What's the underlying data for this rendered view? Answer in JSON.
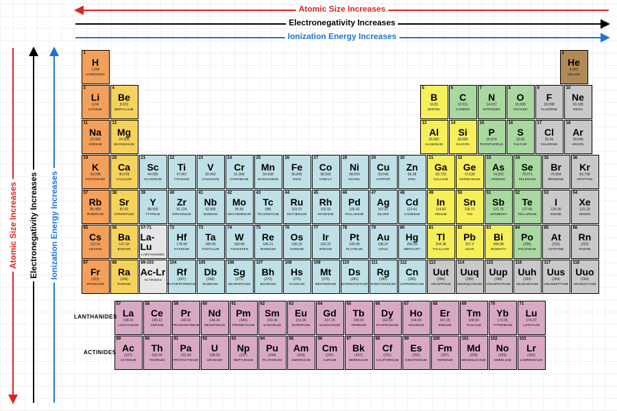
{
  "trends": {
    "top": [
      {
        "label": "Atomic Size Increases",
        "color": "#d9241f",
        "dir": "left"
      },
      {
        "label": "Electronegativity Increases",
        "color": "#000000",
        "dir": "right"
      },
      {
        "label": "Ionization Energy Increases",
        "color": "#1e73d9",
        "dir": "right"
      }
    ],
    "left": [
      {
        "label": "Atomic Size Increases",
        "color": "#d9241f",
        "dir": "down",
        "x": 0
      },
      {
        "label": "Electronegativity Increases",
        "color": "#000000",
        "dir": "up",
        "x": 30
      },
      {
        "label": "Ionization Energy Increases",
        "color": "#1e73d9",
        "dir": "up",
        "x": 60
      }
    ]
  },
  "categoryColors": {
    "alkali": "#f4a05a",
    "alkaline": "#f5d25a",
    "transition": "#bfe0e6",
    "postTransition": "#f5ef5a",
    "metalloid": "#a9d8a0",
    "nonmetal": "#c9c9c9",
    "halogen": "#c9c9c9",
    "noble": "#b08a55",
    "lanth": "#d9a9c4",
    "act": "#d9a9c4",
    "placeholder": "#e6e6e6",
    "unknown": "#c9c9c9"
  },
  "seriesLabels": {
    "lanth": "LANTHANIDES",
    "act": "ACTINIDES"
  },
  "rows": [
    [
      {
        "n": 1,
        "s": "H",
        "m": "1.008",
        "nm": "HYDROGEN",
        "c": "alkali"
      },
      null,
      null,
      null,
      null,
      null,
      null,
      null,
      null,
      null,
      null,
      null,
      null,
      null,
      null,
      null,
      null,
      {
        "n": 2,
        "s": "He",
        "m": "4.003",
        "nm": "HELIUM",
        "c": "noble"
      }
    ],
    [
      {
        "n": 3,
        "s": "Li",
        "m": "6.94",
        "nm": "LITHIUM",
        "c": "alkali"
      },
      {
        "n": 4,
        "s": "Be",
        "m": "9.012",
        "nm": "BERYLLIUM",
        "c": "alkaline"
      },
      null,
      null,
      null,
      null,
      null,
      null,
      null,
      null,
      null,
      null,
      {
        "n": 5,
        "s": "B",
        "m": "10.81",
        "nm": "BORON",
        "c": "postTransition"
      },
      {
        "n": 6,
        "s": "C",
        "m": "12.011",
        "nm": "CARBON",
        "c": "metalloid"
      },
      {
        "n": 7,
        "s": "N",
        "m": "14.007",
        "nm": "NITROGEN",
        "c": "metalloid"
      },
      {
        "n": 8,
        "s": "O",
        "m": "15.999",
        "nm": "OXYGEN",
        "c": "metalloid"
      },
      {
        "n": 9,
        "s": "F",
        "m": "18.998",
        "nm": "FLUORINE",
        "c": "nonmetal"
      },
      {
        "n": 10,
        "s": "Ne",
        "m": "20.180",
        "nm": "NEON",
        "c": "nonmetal"
      }
    ],
    [
      {
        "n": 11,
        "s": "Na",
        "m": "22.990",
        "nm": "SODIUM",
        "c": "alkali"
      },
      {
        "n": 12,
        "s": "Mg",
        "m": "24.305",
        "nm": "MAGNESIUM",
        "c": "alkaline"
      },
      null,
      null,
      null,
      null,
      null,
      null,
      null,
      null,
      null,
      null,
      {
        "n": 13,
        "s": "Al",
        "m": "26.982",
        "nm": "ALUMINUM",
        "c": "postTransition"
      },
      {
        "n": 14,
        "s": "Si",
        "m": "28.085",
        "nm": "SILICON",
        "c": "postTransition"
      },
      {
        "n": 15,
        "s": "P",
        "m": "30.974",
        "nm": "PHOSPHORUS",
        "c": "metalloid"
      },
      {
        "n": 16,
        "s": "S",
        "m": "32.06",
        "nm": "SULFUR",
        "c": "metalloid"
      },
      {
        "n": 17,
        "s": "Cl",
        "m": "35.45",
        "nm": "CHLORINE",
        "c": "nonmetal"
      },
      {
        "n": 18,
        "s": "Ar",
        "m": "39.948",
        "nm": "ARGON",
        "c": "nonmetal"
      }
    ],
    [
      {
        "n": 19,
        "s": "K",
        "m": "39.098",
        "nm": "POTASSIUM",
        "c": "alkali"
      },
      {
        "n": 20,
        "s": "Ca",
        "m": "40.078",
        "nm": "CALCIUM",
        "c": "alkaline"
      },
      {
        "n": 21,
        "s": "Sc",
        "m": "44.956",
        "nm": "SCANDIUM",
        "c": "transition"
      },
      {
        "n": 22,
        "s": "Ti",
        "m": "47.867",
        "nm": "TITANIUM",
        "c": "transition"
      },
      {
        "n": 23,
        "s": "V",
        "m": "50.942",
        "nm": "VANADIUM",
        "c": "transition"
      },
      {
        "n": 24,
        "s": "Cr",
        "m": "51.996",
        "nm": "CHROMIUM",
        "c": "transition"
      },
      {
        "n": 25,
        "s": "Mn",
        "m": "54.938",
        "nm": "MANGANESE",
        "c": "transition"
      },
      {
        "n": 26,
        "s": "Fe",
        "m": "55.845",
        "nm": "IRON",
        "c": "transition"
      },
      {
        "n": 27,
        "s": "Co",
        "m": "58.933",
        "nm": "COBALT",
        "c": "transition"
      },
      {
        "n": 28,
        "s": "Ni",
        "m": "58.693",
        "nm": "NICKEL",
        "c": "transition"
      },
      {
        "n": 29,
        "s": "Cu",
        "m": "63.546",
        "nm": "COPPER",
        "c": "transition"
      },
      {
        "n": 30,
        "s": "Zn",
        "m": "65.38",
        "nm": "ZINC",
        "c": "transition"
      },
      {
        "n": 31,
        "s": "Ga",
        "m": "69.723",
        "nm": "GALLIUM",
        "c": "postTransition"
      },
      {
        "n": 32,
        "s": "Ge",
        "m": "72.630",
        "nm": "GERMANIUM",
        "c": "postTransition"
      },
      {
        "n": 33,
        "s": "As",
        "m": "74.922",
        "nm": "ARSENIC",
        "c": "metalloid"
      },
      {
        "n": 34,
        "s": "Se",
        "m": "78.971",
        "nm": "SELENIUM",
        "c": "metalloid"
      },
      {
        "n": 35,
        "s": "Br",
        "m": "79.904",
        "nm": "BROMINE",
        "c": "nonmetal"
      },
      {
        "n": 36,
        "s": "Kr",
        "m": "83.798",
        "nm": "KRYPTON",
        "c": "nonmetal"
      }
    ],
    [
      {
        "n": 37,
        "s": "Rb",
        "m": "85.468",
        "nm": "RUBIDIUM",
        "c": "alkali"
      },
      {
        "n": 38,
        "s": "Sr",
        "m": "87.62",
        "nm": "STRONTIUM",
        "c": "alkaline"
      },
      {
        "n": 39,
        "s": "Y",
        "m": "88.906",
        "nm": "YTTRIUM",
        "c": "transition"
      },
      {
        "n": 40,
        "s": "Zr",
        "m": "91.224",
        "nm": "ZIRCONIUM",
        "c": "transition"
      },
      {
        "n": 41,
        "s": "Nb",
        "m": "92.906",
        "nm": "NIOBIUM",
        "c": "transition"
      },
      {
        "n": 42,
        "s": "Mo",
        "m": "95.95",
        "nm": "MOLYBDENUM",
        "c": "transition"
      },
      {
        "n": 43,
        "s": "Tc",
        "m": "(98)",
        "nm": "TECHNETIUM",
        "c": "transition"
      },
      {
        "n": 44,
        "s": "Ru",
        "m": "101.07",
        "nm": "RUTHENIUM",
        "c": "transition"
      },
      {
        "n": 45,
        "s": "Rh",
        "m": "102.91",
        "nm": "RHODIUM",
        "c": "transition"
      },
      {
        "n": 46,
        "s": "Pd",
        "m": "106.42",
        "nm": "PALLADIUM",
        "c": "transition"
      },
      {
        "n": 47,
        "s": "Ag",
        "m": "107.87",
        "nm": "SILVER",
        "c": "transition"
      },
      {
        "n": 48,
        "s": "Cd",
        "m": "112.41",
        "nm": "CADMIUM",
        "c": "transition"
      },
      {
        "n": 49,
        "s": "In",
        "m": "114.82",
        "nm": "INDIUM",
        "c": "postTransition"
      },
      {
        "n": 50,
        "s": "Sn",
        "m": "118.71",
        "nm": "TIN",
        "c": "postTransition"
      },
      {
        "n": 51,
        "s": "Sb",
        "m": "121.76",
        "nm": "ANTIMONY",
        "c": "metalloid"
      },
      {
        "n": 52,
        "s": "Te",
        "m": "127.60",
        "nm": "TELLURIUM",
        "c": "metalloid"
      },
      {
        "n": 53,
        "s": "I",
        "m": "126.90",
        "nm": "IODINE",
        "c": "nonmetal"
      },
      {
        "n": 54,
        "s": "Xe",
        "m": "131.29",
        "nm": "XENON",
        "c": "nonmetal"
      }
    ],
    [
      {
        "n": 55,
        "s": "Cs",
        "m": "132.91",
        "nm": "CESIUM",
        "c": "alkali"
      },
      {
        "n": 56,
        "s": "Ba",
        "m": "137.33",
        "nm": "BARIUM",
        "c": "alkaline"
      },
      {
        "n": "57-71",
        "s": "La-Lu",
        "m": "",
        "nm": "LANTHANIDES",
        "c": "placeholder"
      },
      {
        "n": 72,
        "s": "Hf",
        "m": "178.49",
        "nm": "HAFNIUM",
        "c": "transition"
      },
      {
        "n": 73,
        "s": "Ta",
        "m": "180.95",
        "nm": "TANTALUM",
        "c": "transition"
      },
      {
        "n": 74,
        "s": "W",
        "m": "183.84",
        "nm": "TUNGSTEN",
        "c": "transition"
      },
      {
        "n": 75,
        "s": "Re",
        "m": "186.21",
        "nm": "RHENIUM",
        "c": "transition"
      },
      {
        "n": 76,
        "s": "Os",
        "m": "190.23",
        "nm": "OSMIUM",
        "c": "transition"
      },
      {
        "n": 77,
        "s": "Ir",
        "m": "192.22",
        "nm": "IRIDIUM",
        "c": "transition"
      },
      {
        "n": 78,
        "s": "Pt",
        "m": "195.08",
        "nm": "PLATINUM",
        "c": "transition"
      },
      {
        "n": 79,
        "s": "Au",
        "m": "196.97",
        "nm": "GOLD",
        "c": "transition"
      },
      {
        "n": 80,
        "s": "Hg",
        "m": "200.59",
        "nm": "MERCURY",
        "c": "transition"
      },
      {
        "n": 81,
        "s": "Tl",
        "m": "204.38",
        "nm": "THALLIUM",
        "c": "postTransition"
      },
      {
        "n": 82,
        "s": "Pb",
        "m": "207.2",
        "nm": "LEAD",
        "c": "postTransition"
      },
      {
        "n": 83,
        "s": "Bi",
        "m": "208.98",
        "nm": "BISMUTH",
        "c": "postTransition"
      },
      {
        "n": 84,
        "s": "Po",
        "m": "(209)",
        "nm": "POLONIUM",
        "c": "metalloid"
      },
      {
        "n": 85,
        "s": "At",
        "m": "(210)",
        "nm": "ASTATINE",
        "c": "nonmetal"
      },
      {
        "n": 86,
        "s": "Rn",
        "m": "(222)",
        "nm": "RADON",
        "c": "nonmetal"
      }
    ],
    [
      {
        "n": 87,
        "s": "Fr",
        "m": "(223)",
        "nm": "FRANCIUM",
        "c": "alkali"
      },
      {
        "n": 88,
        "s": "Ra",
        "m": "(226)",
        "nm": "RADIUM",
        "c": "alkaline"
      },
      {
        "n": "89-103",
        "s": "Ac-Lr",
        "m": "",
        "nm": "ACTINIDES",
        "c": "placeholder"
      },
      {
        "n": 104,
        "s": "Rf",
        "m": "(267)",
        "nm": "RUTHERFORDIUM",
        "c": "transition"
      },
      {
        "n": 105,
        "s": "Db",
        "m": "(268)",
        "nm": "DUBNIUM",
        "c": "transition"
      },
      {
        "n": 106,
        "s": "Sg",
        "m": "(271)",
        "nm": "SEABORGIUM",
        "c": "transition"
      },
      {
        "n": 107,
        "s": "Bh",
        "m": "(272)",
        "nm": "BOHRIUM",
        "c": "transition"
      },
      {
        "n": 108,
        "s": "Hs",
        "m": "(270)",
        "nm": "HASSIUM",
        "c": "transition"
      },
      {
        "n": 109,
        "s": "Mt",
        "m": "(276)",
        "nm": "MEITNERIUM",
        "c": "transition"
      },
      {
        "n": 110,
        "s": "Ds",
        "m": "(281)",
        "nm": "DARMSTADTIUM",
        "c": "transition"
      },
      {
        "n": 111,
        "s": "Rg",
        "m": "(280)",
        "nm": "ROENTGENIUM",
        "c": "transition"
      },
      {
        "n": 112,
        "s": "Cn",
        "m": "(285)",
        "nm": "COPERNICIUM",
        "c": "transition"
      },
      {
        "n": 113,
        "s": "Uut",
        "m": "(284)",
        "nm": "UNUNTRIUM",
        "c": "unknown"
      },
      {
        "n": 114,
        "s": "Uuq",
        "m": "(289)",
        "nm": "UNUNQUADIUM",
        "c": "unknown"
      },
      {
        "n": 115,
        "s": "Uup",
        "m": "(288)",
        "nm": "UNUNPENTIUM",
        "c": "unknown"
      },
      {
        "n": 116,
        "s": "Uuh",
        "m": "(293)",
        "nm": "UNUNHEXIUM",
        "c": "unknown"
      },
      {
        "n": 117,
        "s": "Uus",
        "m": "(294)",
        "nm": "UNUNSEPTIUM",
        "c": "unknown"
      },
      {
        "n": 118,
        "s": "Uuo",
        "m": "(294)",
        "nm": "UNUNOCTIUM",
        "c": "unknown"
      }
    ]
  ],
  "fblock": [
    [
      {
        "n": 57,
        "s": "La",
        "m": "138.91",
        "nm": "LANTHANUM",
        "c": "lanth"
      },
      {
        "n": 58,
        "s": "Ce",
        "m": "140.12",
        "nm": "CERIUM",
        "c": "lanth"
      },
      {
        "n": 59,
        "s": "Pr",
        "m": "140.91",
        "nm": "PRASEODYMIUM",
        "c": "lanth"
      },
      {
        "n": 60,
        "s": "Nd",
        "m": "144.24",
        "nm": "NEODYMIUM",
        "c": "lanth"
      },
      {
        "n": 61,
        "s": "Pm",
        "m": "(145)",
        "nm": "PROMETHIUM",
        "c": "lanth"
      },
      {
        "n": 62,
        "s": "Sm",
        "m": "150.36",
        "nm": "SAMARIUM",
        "c": "lanth"
      },
      {
        "n": 63,
        "s": "Eu",
        "m": "151.96",
        "nm": "EUROPIUM",
        "c": "lanth"
      },
      {
        "n": 64,
        "s": "Gd",
        "m": "157.25",
        "nm": "GADOLINIUM",
        "c": "lanth"
      },
      {
        "n": 65,
        "s": "Tb",
        "m": "158.93",
        "nm": "TERBIUM",
        "c": "lanth"
      },
      {
        "n": 66,
        "s": "Dy",
        "m": "162.50",
        "nm": "DYSPROSIUM",
        "c": "lanth"
      },
      {
        "n": 67,
        "s": "Ho",
        "m": "164.93",
        "nm": "HOLMIUM",
        "c": "lanth"
      },
      {
        "n": 68,
        "s": "Er",
        "m": "167.26",
        "nm": "ERBIUM",
        "c": "lanth"
      },
      {
        "n": 69,
        "s": "Tm",
        "m": "168.93",
        "nm": "THULIUM",
        "c": "lanth"
      },
      {
        "n": 70,
        "s": "Yb",
        "m": "173.05",
        "nm": "YTTERBIUM",
        "c": "lanth"
      },
      {
        "n": 71,
        "s": "Lu",
        "m": "174.97",
        "nm": "LUTETIUM",
        "c": "lanth"
      }
    ],
    [
      {
        "n": 89,
        "s": "Ac",
        "m": "(227)",
        "nm": "ACTINIUM",
        "c": "act"
      },
      {
        "n": 90,
        "s": "Th",
        "m": "232.04",
        "nm": "THORIUM",
        "c": "act"
      },
      {
        "n": 91,
        "s": "Pa",
        "m": "231.04",
        "nm": "PROTACTINIUM",
        "c": "act"
      },
      {
        "n": 92,
        "s": "U",
        "m": "238.03",
        "nm": "URANIUM",
        "c": "act"
      },
      {
        "n": 93,
        "s": "Np",
        "m": "(237)",
        "nm": "NEPTUNIUM",
        "c": "act"
      },
      {
        "n": 94,
        "s": "Pu",
        "m": "(244)",
        "nm": "PLUTONIUM",
        "c": "act"
      },
      {
        "n": 95,
        "s": "Am",
        "m": "(243)",
        "nm": "AMERICIUM",
        "c": "act"
      },
      {
        "n": 96,
        "s": "Cm",
        "m": "(247)",
        "nm": "CURIUM",
        "c": "act"
      },
      {
        "n": 97,
        "s": "Bk",
        "m": "(247)",
        "nm": "BERKELIUM",
        "c": "act"
      },
      {
        "n": 98,
        "s": "Cf",
        "m": "(251)",
        "nm": "CALIFORNIUM",
        "c": "act"
      },
      {
        "n": 99,
        "s": "Es",
        "m": "(252)",
        "nm": "EINSTEINIUM",
        "c": "act"
      },
      {
        "n": 100,
        "s": "Fm",
        "m": "(257)",
        "nm": "FERMIUM",
        "c": "act"
      },
      {
        "n": 101,
        "s": "Md",
        "m": "(258)",
        "nm": "MENDELEVIUM",
        "c": "act"
      },
      {
        "n": 102,
        "s": "No",
        "m": "(259)",
        "nm": "NOBELIUM",
        "c": "act"
      },
      {
        "n": 103,
        "s": "Lr",
        "m": "(262)",
        "nm": "LAWRENCIUM",
        "c": "act"
      }
    ]
  ]
}
